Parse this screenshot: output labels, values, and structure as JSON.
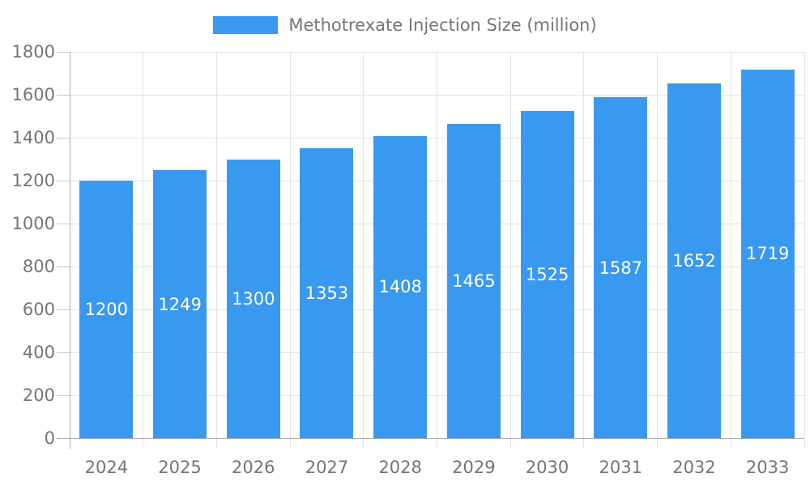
{
  "legend": {
    "label": "Methotrexate Injection Size (million)"
  },
  "colors": {
    "bar": "#3999EE",
    "bar_label": "#FFFFFF",
    "axis_text": "#757575",
    "gridline": "#E3E3E3",
    "tick": "#C9C9C9",
    "axis_line": "#ADADAD",
    "background": "#FFFFFF"
  },
  "chart_data": {
    "type": "bar",
    "title": "Methotrexate Injection Size (million)",
    "series_name": "Methotrexate Injection Size (million)",
    "categories": [
      "2024",
      "2025",
      "2026",
      "2027",
      "2028",
      "2029",
      "2030",
      "2031",
      "2032",
      "2033"
    ],
    "values": [
      1200,
      1249,
      1300,
      1353,
      1408,
      1465,
      1525,
      1587,
      1652,
      1719
    ],
    "yticks": [
      0,
      200,
      400,
      600,
      800,
      1000,
      1200,
      1400,
      1600,
      1800
    ],
    "ylim": [
      0,
      1800
    ],
    "xlabel": "",
    "ylabel": "",
    "grid": true,
    "legend_position": "top-center",
    "bar_value_labels": "inside-middle"
  }
}
